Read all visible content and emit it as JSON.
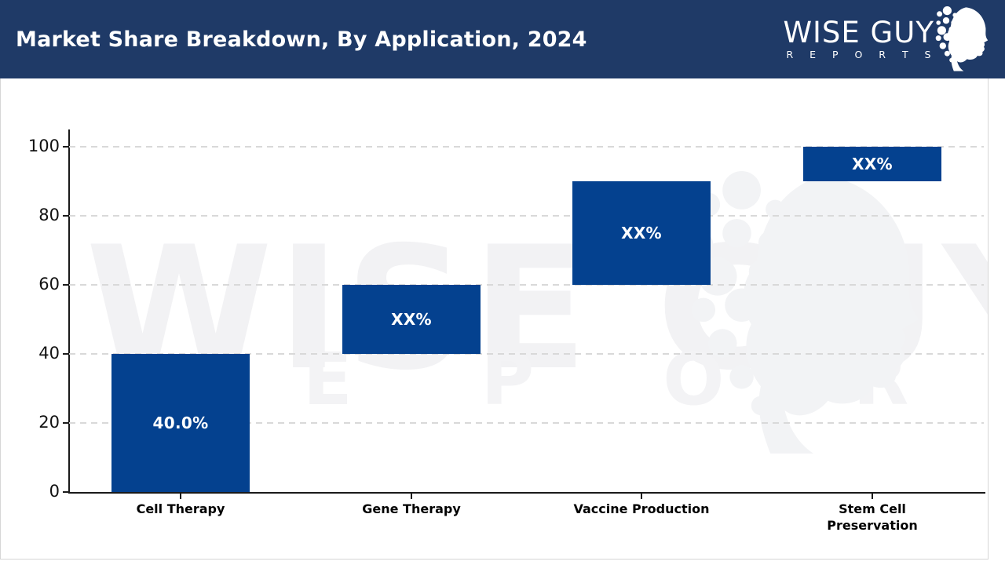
{
  "header": {
    "title": "Market Share Breakdown, By Application, 2024",
    "logo": {
      "brand_line1": "WISE GUY",
      "brand_line2": "R E P O R T S"
    }
  },
  "watermark": {
    "line1": "WISE GUY",
    "line2": "R E P O R T S"
  },
  "colors": {
    "header_bg": "#1f3a67",
    "bar_fill": "#04418f",
    "grid": "#d9d9d9",
    "axis": "#1a1a1a",
    "value_label": "#ffffff",
    "watermark": "#f2f2f4"
  },
  "chart_data": {
    "type": "bar",
    "subtype": "waterfall",
    "title": "Market Share Breakdown, By Application, 2024",
    "unit": "percent",
    "ylim": [
      0,
      105
    ],
    "yticks": [
      0,
      20,
      40,
      60,
      80,
      100
    ],
    "grid": "horizontal-dashed",
    "legend": "none",
    "categories": [
      "Cell Therapy",
      "Gene Therapy",
      "Vaccine Production",
      "Stem Cell Preservation"
    ],
    "category_label_lines": [
      [
        "Cell Therapy"
      ],
      [
        "Gene Therapy"
      ],
      [
        "Vaccine Production"
      ],
      [
        "Stem Cell",
        "Preservation"
      ]
    ],
    "bars": [
      {
        "category": "Cell Therapy",
        "start": 0,
        "end": 40,
        "value_label": "40.0%"
      },
      {
        "category": "Gene Therapy",
        "start": 40,
        "end": 60,
        "value_label": "XX%"
      },
      {
        "category": "Vaccine Production",
        "start": 60,
        "end": 90,
        "value_label": "XX%"
      },
      {
        "category": "Stem Cell Preservation",
        "start": 90,
        "end": 100,
        "value_label": "XX%"
      }
    ]
  }
}
